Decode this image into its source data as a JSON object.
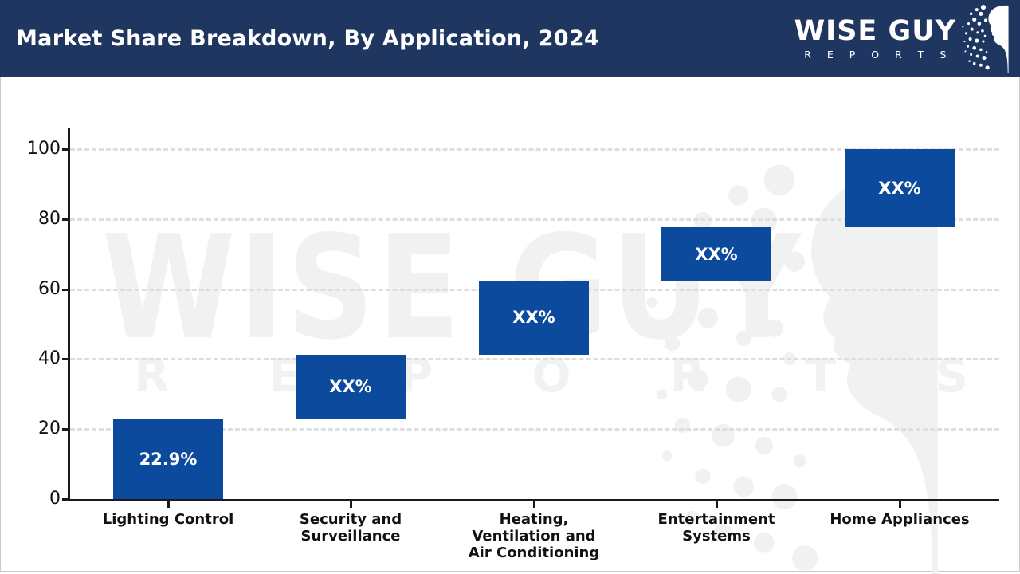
{
  "header": {
    "title": "Market Share Breakdown, By Application, 2024",
    "background_color": "#1f3660",
    "logo": {
      "line1": "WISE GUY",
      "line2": "R E P O R T S"
    }
  },
  "watermark": {
    "line1": "WISE GUY",
    "line2": "R E P O R T S"
  },
  "chart_data": {
    "type": "bar",
    "subtype": "waterfall",
    "title": "Market Share Breakdown, By Application, 2024",
    "categories": [
      [
        "Lighting Control"
      ],
      [
        "Security and",
        "Surveillance"
      ],
      [
        "Heating,",
        "Ventilation and",
        "Air Conditioning"
      ],
      [
        "Entertainment",
        "Systems"
      ],
      [
        "Home Appliances"
      ]
    ],
    "segments": [
      {
        "category": "Lighting Control",
        "start": 0,
        "end": 22.9,
        "label": "22.9%"
      },
      {
        "category": "Security and Surveillance",
        "start": 22.9,
        "end": 41.3,
        "label": "XX%"
      },
      {
        "category": "Heating, Ventilation and Air Conditioning",
        "start": 41.3,
        "end": 62.4,
        "label": "XX%"
      },
      {
        "category": "Entertainment Systems",
        "start": 62.4,
        "end": 77.6,
        "label": "XX%"
      },
      {
        "category": "Home Appliances",
        "start": 77.6,
        "end": 100,
        "label": "XX%"
      }
    ],
    "y_ticks": [
      0,
      20,
      40,
      60,
      80,
      100
    ],
    "ylim": [
      0,
      106
    ],
    "xlabel": "",
    "ylabel": "",
    "bar_color": "#0b4a9c",
    "bar_label_color": "#ffffff",
    "grid": "horizontal-dashed",
    "gridline_color": "#dedede",
    "legend": "none"
  }
}
